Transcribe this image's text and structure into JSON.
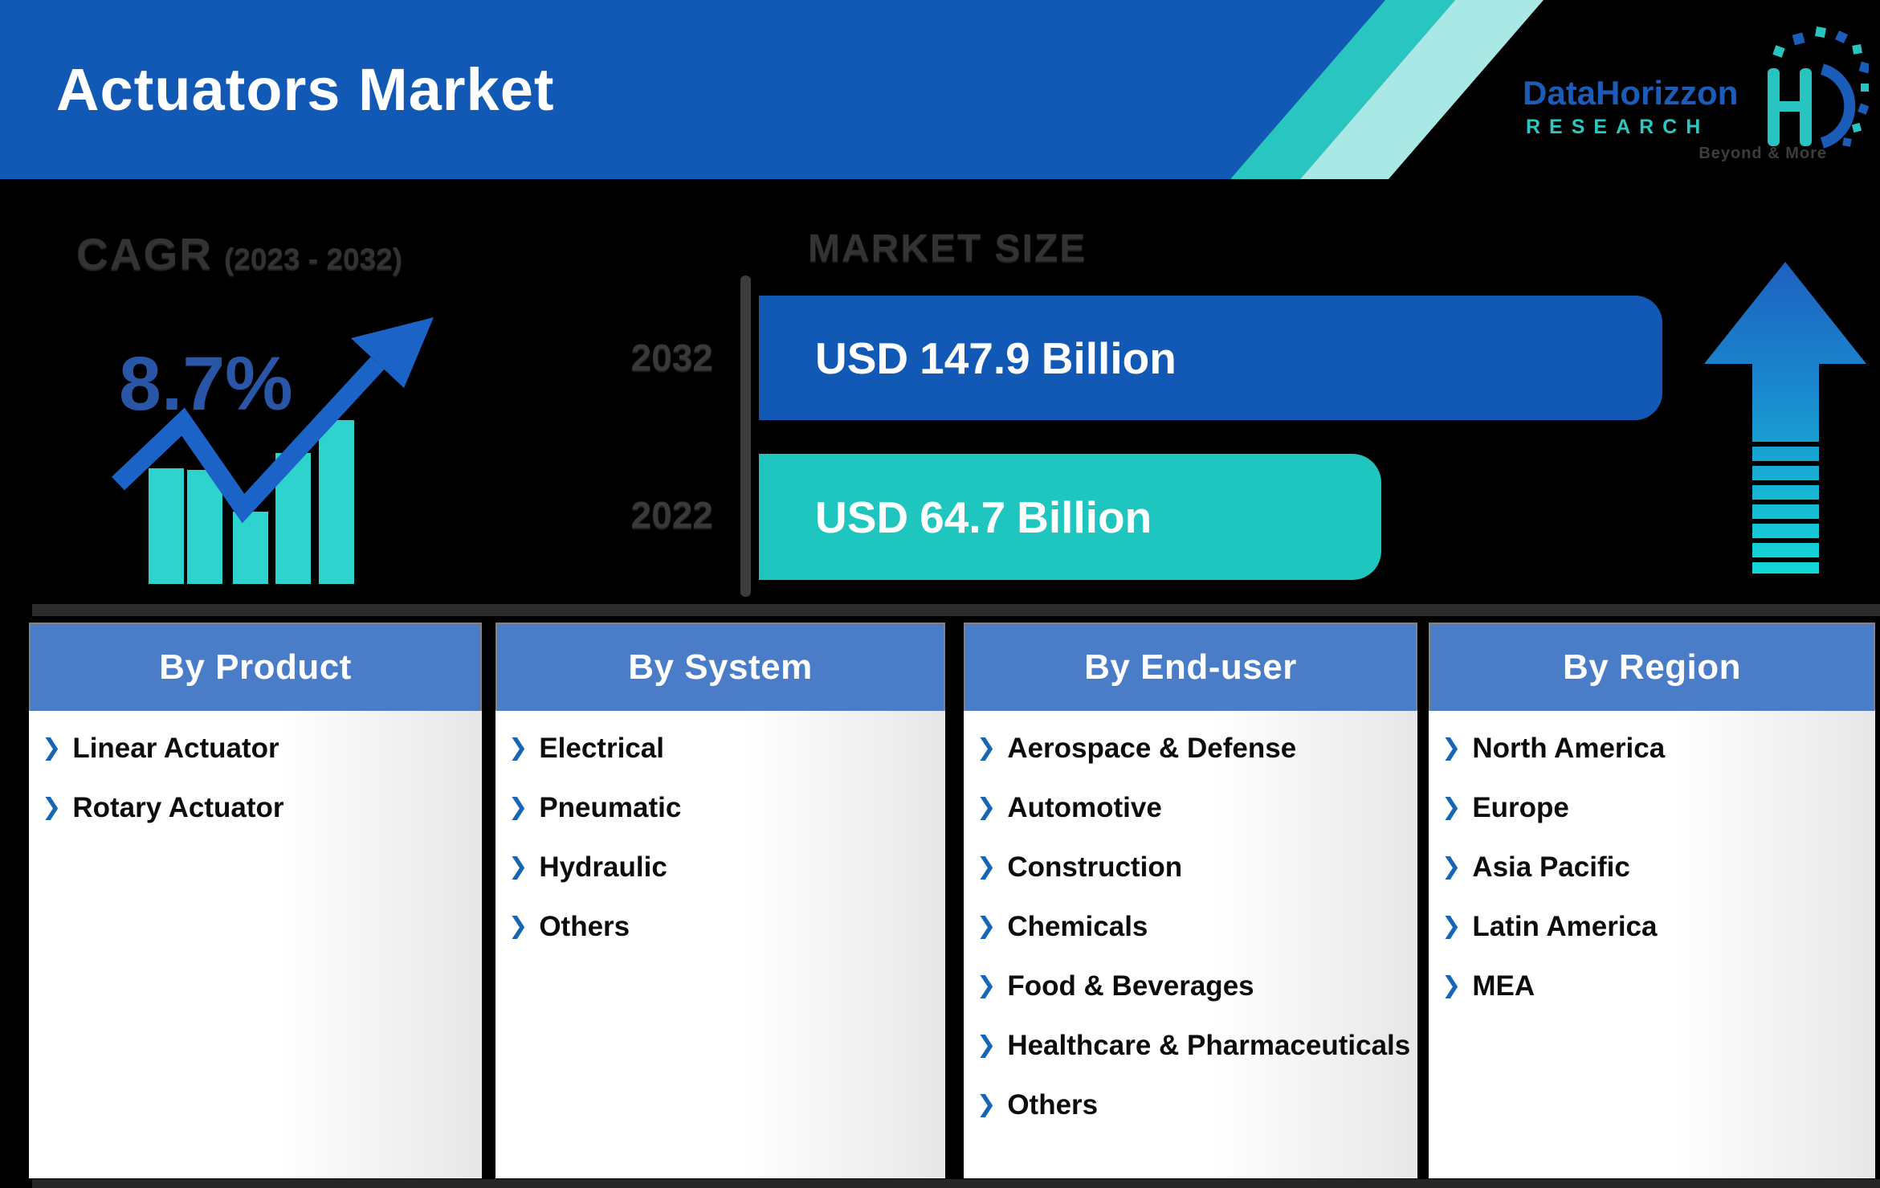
{
  "header": {
    "title": "Actuators Market"
  },
  "logo": {
    "brand": "DataHorizzon",
    "research": "RESEARCH",
    "tagline": "Beyond & More"
  },
  "cagr": {
    "label": "CAGR",
    "period": "(2023 - 2032)",
    "value": "8.7%"
  },
  "market_size": {
    "title": "MARKET SIZE",
    "bars": [
      {
        "year": "2032",
        "prefix": "USD",
        "value": "147.9",
        "suffix": "Billion"
      },
      {
        "year": "2022",
        "prefix": "USD",
        "value": "64.7",
        "suffix": "Billion"
      }
    ]
  },
  "segments": [
    {
      "title": "By Product",
      "items": [
        "Linear Actuator",
        "Rotary Actuator"
      ]
    },
    {
      "title": "By System",
      "items": [
        "Electrical",
        "Pneumatic",
        "Hydraulic",
        "Others"
      ]
    },
    {
      "title": "By End-user",
      "items": [
        "Aerospace & Defense",
        "Automotive",
        "Construction",
        "Chemicals",
        "Food & Beverages",
        "Healthcare & Pharmaceuticals",
        "Others"
      ]
    },
    {
      "title": "By Region",
      "items": [
        "North America",
        "Europe",
        "Asia Pacific",
        "Latin America",
        "MEA"
      ]
    }
  ],
  "icons": {
    "chevron": "❯"
  },
  "colors": {
    "banner_blue": "#1159b4",
    "column_header_blue": "#4a7cc8",
    "teal": "#1fc5bf",
    "stripe_teal": "#29c5c0",
    "stripe_light_teal": "#a9e8e5",
    "accent_text_blue": "#2a56a8",
    "chevron_blue": "#1766b5",
    "arrow_gradient_top": "#1e5fc0",
    "arrow_gradient_bottom": "#13dbd8"
  },
  "chart_data": {
    "type": "bar",
    "orientation": "horizontal",
    "title": "MARKET SIZE",
    "unit": "USD Billion",
    "categories": [
      "2032",
      "2022"
    ],
    "values": [
      147.9,
      64.7
    ],
    "bar_labels": [
      "USD 147.9 Billion",
      "USD 64.7 Billion"
    ],
    "bar_colors": [
      "#1159b4",
      "#1fc5bf"
    ],
    "annotations": [
      {
        "label": "CAGR (2023 - 2032)",
        "value": "8.7%"
      }
    ],
    "legend": false,
    "grid": false
  }
}
